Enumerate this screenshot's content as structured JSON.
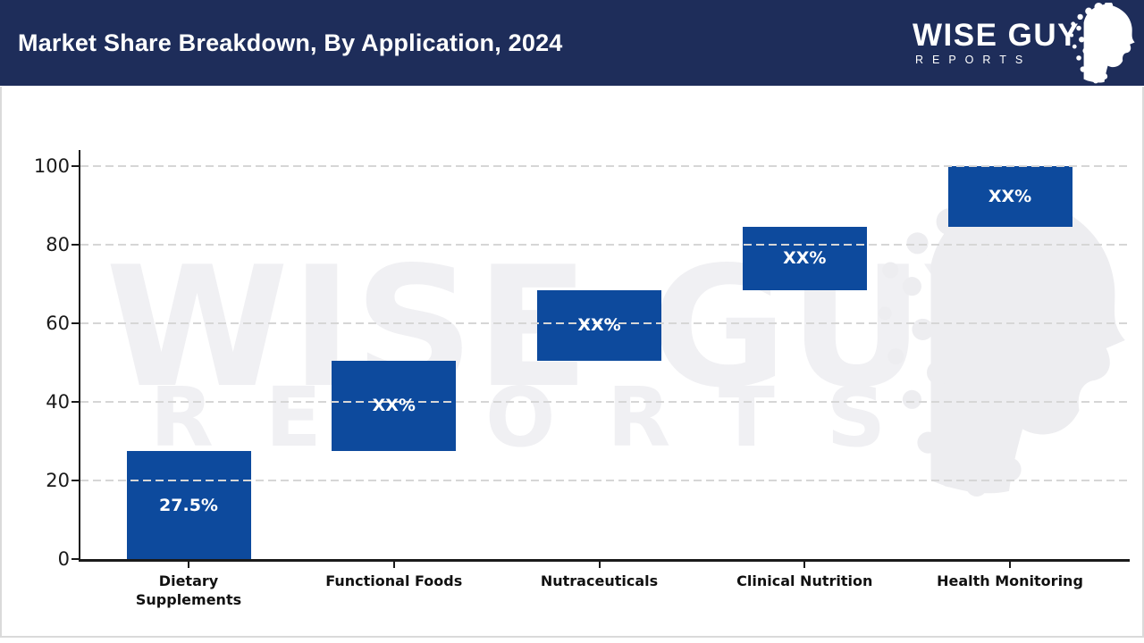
{
  "header": {
    "title": "Market Share Breakdown, By Application, 2024",
    "brand": {
      "name": "WISE GUY",
      "sub": "REPORTS"
    }
  },
  "watermark": {
    "line1": "WISE GUY",
    "line2": "REPORTS"
  },
  "colors": {
    "header_bg": "#1e2d5a",
    "bar": "#0d4a9d",
    "grid": "#d6d6d6",
    "axis": "#1a1a1a",
    "watermark": "#f0f0f3"
  },
  "chart_data": {
    "type": "bar",
    "subtype": "waterfall",
    "title": "Market Share Breakdown, By Application, 2024",
    "categories": [
      "Dietary\nSupplements",
      "Functional Foods",
      "Nutraceuticals",
      "Clinical Nutrition",
      "Health Monitoring"
    ],
    "series": [
      {
        "name": "Market Share",
        "segments": [
          {
            "category": "Dietary Supplements",
            "start": 0,
            "end": 27.5,
            "label": "27.5%"
          },
          {
            "category": "Functional Foods",
            "start": 27.5,
            "end": 50.5,
            "label": "XX%"
          },
          {
            "category": "Nutraceuticals",
            "start": 50.5,
            "end": 68.5,
            "label": "XX%"
          },
          {
            "category": "Clinical Nutrition",
            "start": 68.5,
            "end": 84.5,
            "label": "XX%"
          },
          {
            "category": "Health Monitoring",
            "start": 84.5,
            "end": 100,
            "label": "XX%"
          }
        ]
      }
    ],
    "xlabel": "",
    "ylabel": "",
    "yticks": [
      0,
      20,
      40,
      60,
      80,
      100
    ],
    "ylim": [
      0,
      104
    ],
    "grid": {
      "horizontal": true,
      "style": "dashed"
    },
    "legend": "none",
    "bar_color": "#0d4a9d",
    "bar_label_color": "#ffffff"
  }
}
